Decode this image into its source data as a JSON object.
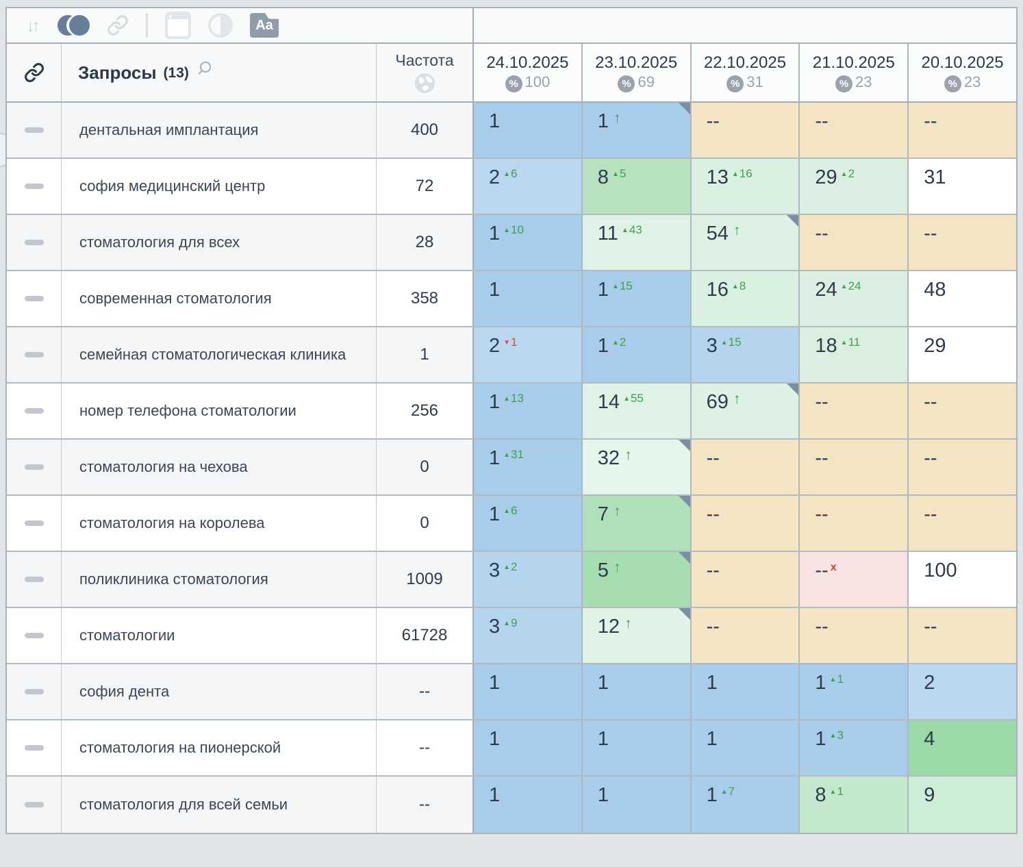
{
  "toolbar": {
    "aa_label": "Aa"
  },
  "glyphs": {
    "percent": "%",
    "up_triangle": "▲",
    "down_triangle": "▼",
    "entered_arrow": "↑",
    "lost_mark": "x"
  },
  "header": {
    "queries_label": "Запросы",
    "queries_count": "(13)",
    "frequency_label": "Частота",
    "dates": [
      {
        "date": "24.10.2025",
        "percent": "100"
      },
      {
        "date": "23.10.2025",
        "percent": "69"
      },
      {
        "date": "22.10.2025",
        "percent": "31"
      },
      {
        "date": "21.10.2025",
        "percent": "23"
      },
      {
        "date": "20.10.2025",
        "percent": "23"
      }
    ]
  },
  "colors": {
    "top1_blue": "#a7cdea",
    "top3_blue": "#b9d8f0",
    "green": "#a6ddb1",
    "light_green": "#ddf1e4",
    "not_ranked_tan": "#f3e5c3",
    "lost_pink": "#f8e3e3",
    "up_green": "#3da24c",
    "down_red": "#e0463c"
  },
  "rows": [
    {
      "keyword": "дентальная имплантация",
      "frequency": "400",
      "cells": [
        {
          "value": "1",
          "bg": "#a7cdea"
        },
        {
          "value": "1",
          "bg": "#a7cdea",
          "change": "entered",
          "corner": true
        },
        {
          "value": "--",
          "bg": "#f3e5c3"
        },
        {
          "value": "--",
          "bg": "#f3e5c3"
        },
        {
          "value": "--",
          "bg": "#f3e5c3"
        }
      ]
    },
    {
      "keyword": "софия медицинский центр",
      "frequency": "72",
      "cells": [
        {
          "value": "2",
          "bg": "#b9d8f0",
          "change": "up",
          "delta": "6"
        },
        {
          "value": "8",
          "bg": "#b6e2bf",
          "change": "up",
          "delta": "5"
        },
        {
          "value": "13",
          "bg": "#daf0e1",
          "change": "up",
          "delta": "16"
        },
        {
          "value": "29",
          "bg": "#dbf0e2",
          "change": "up",
          "delta": "2"
        },
        {
          "value": "31",
          "bg": "#ffffff"
        }
      ]
    },
    {
      "keyword": "стоматология для всех",
      "frequency": "28",
      "cells": [
        {
          "value": "1",
          "bg": "#a7cdea",
          "change": "up",
          "delta": "10"
        },
        {
          "value": "11",
          "bg": "#def2e5",
          "change": "up",
          "delta": "43"
        },
        {
          "value": "54",
          "bg": "#ddf2e4",
          "change": "entered",
          "corner": true
        },
        {
          "value": "--",
          "bg": "#f3e5c3"
        },
        {
          "value": "--",
          "bg": "#f3e5c3"
        }
      ]
    },
    {
      "keyword": "современная стоматология",
      "frequency": "358",
      "cells": [
        {
          "value": "1",
          "bg": "#a7cdea"
        },
        {
          "value": "1",
          "bg": "#a7cdea",
          "change": "up",
          "delta": "15"
        },
        {
          "value": "16",
          "bg": "#daf0e1",
          "change": "up",
          "delta": "8"
        },
        {
          "value": "24",
          "bg": "#dbf0e2",
          "change": "up",
          "delta": "24"
        },
        {
          "value": "48",
          "bg": "#ffffff"
        }
      ]
    },
    {
      "keyword": "семейная стоматологическая клиника",
      "frequency": "1",
      "cells": [
        {
          "value": "2",
          "bg": "#b9d8f0",
          "change": "down",
          "delta": "1"
        },
        {
          "value": "1",
          "bg": "#a7cdea",
          "change": "up",
          "delta": "2"
        },
        {
          "value": "3",
          "bg": "#b5d5ee",
          "change": "up",
          "delta": "15"
        },
        {
          "value": "18",
          "bg": "#daefe0",
          "change": "up",
          "delta": "11"
        },
        {
          "value": "29",
          "bg": "#ffffff"
        }
      ]
    },
    {
      "keyword": "номер телефона стоматологии",
      "frequency": "256",
      "cells": [
        {
          "value": "1",
          "bg": "#a7cdea",
          "change": "up",
          "delta": "13"
        },
        {
          "value": "14",
          "bg": "#def2e5",
          "change": "up",
          "delta": "55"
        },
        {
          "value": "69",
          "bg": "#ddf2e4",
          "change": "entered",
          "corner": true
        },
        {
          "value": "--",
          "bg": "#f3e5c3"
        },
        {
          "value": "--",
          "bg": "#f3e5c3"
        }
      ]
    },
    {
      "keyword": "стоматология на чехова",
      "frequency": "0",
      "cells": [
        {
          "value": "1",
          "bg": "#a7cdea",
          "change": "up",
          "delta": "31"
        },
        {
          "value": "32",
          "bg": "#e4f5ea",
          "change": "entered",
          "corner": true
        },
        {
          "value": "--",
          "bg": "#f3e5c3"
        },
        {
          "value": "--",
          "bg": "#f3e5c3"
        },
        {
          "value": "--",
          "bg": "#f3e5c3"
        }
      ]
    },
    {
      "keyword": "стоматология на королева",
      "frequency": "0",
      "cells": [
        {
          "value": "1",
          "bg": "#a7cdea",
          "change": "up",
          "delta": "6"
        },
        {
          "value": "7",
          "bg": "#b0e0ba",
          "change": "entered",
          "corner": true
        },
        {
          "value": "--",
          "bg": "#f3e5c3"
        },
        {
          "value": "--",
          "bg": "#f3e5c3"
        },
        {
          "value": "--",
          "bg": "#f3e5c3"
        }
      ]
    },
    {
      "keyword": "поликлиника стоматология",
      "frequency": "1009",
      "cells": [
        {
          "value": "3",
          "bg": "#b5d5ee",
          "change": "up",
          "delta": "2"
        },
        {
          "value": "5",
          "bg": "#a6ddb1",
          "change": "entered",
          "corner": true
        },
        {
          "value": "--",
          "bg": "#f3e5c3"
        },
        {
          "value": "--",
          "bg": "#f8e3e3",
          "change": "lost"
        },
        {
          "value": "100",
          "bg": "#ffffff"
        }
      ]
    },
    {
      "keyword": "стоматологии",
      "frequency": "61728",
      "cells": [
        {
          "value": "3",
          "bg": "#b5d5ee",
          "change": "up",
          "delta": "9"
        },
        {
          "value": "12",
          "bg": "#e1f3e7",
          "change": "entered",
          "corner": true
        },
        {
          "value": "--",
          "bg": "#f3e5c3"
        },
        {
          "value": "--",
          "bg": "#f3e5c3"
        },
        {
          "value": "--",
          "bg": "#f3e5c3"
        }
      ]
    },
    {
      "keyword": "софия дента",
      "frequency": "--",
      "cells": [
        {
          "value": "1",
          "bg": "#a7cdea"
        },
        {
          "value": "1",
          "bg": "#a7cdea"
        },
        {
          "value": "1",
          "bg": "#a7cdea"
        },
        {
          "value": "1",
          "bg": "#a7cdea",
          "change": "up",
          "delta": "1"
        },
        {
          "value": "2",
          "bg": "#b9d8f0"
        }
      ]
    },
    {
      "keyword": "стоматология на пионерской",
      "frequency": "--",
      "cells": [
        {
          "value": "1",
          "bg": "#a7cdea"
        },
        {
          "value": "1",
          "bg": "#a7cdea"
        },
        {
          "value": "1",
          "bg": "#a7cdea"
        },
        {
          "value": "1",
          "bg": "#a7cdea",
          "change": "up",
          "delta": "3"
        },
        {
          "value": "4",
          "bg": "#9bd9a7"
        }
      ]
    },
    {
      "keyword": "стоматология для всей семьи",
      "frequency": "--",
      "cells": [
        {
          "value": "1",
          "bg": "#a7cdea"
        },
        {
          "value": "1",
          "bg": "#a7cdea"
        },
        {
          "value": "1",
          "bg": "#a7cdea",
          "change": "up",
          "delta": "7"
        },
        {
          "value": "8",
          "bg": "#c3e8cc",
          "change": "up",
          "delta": "1"
        },
        {
          "value": "9",
          "bg": "#ceedd6"
        }
      ]
    }
  ]
}
